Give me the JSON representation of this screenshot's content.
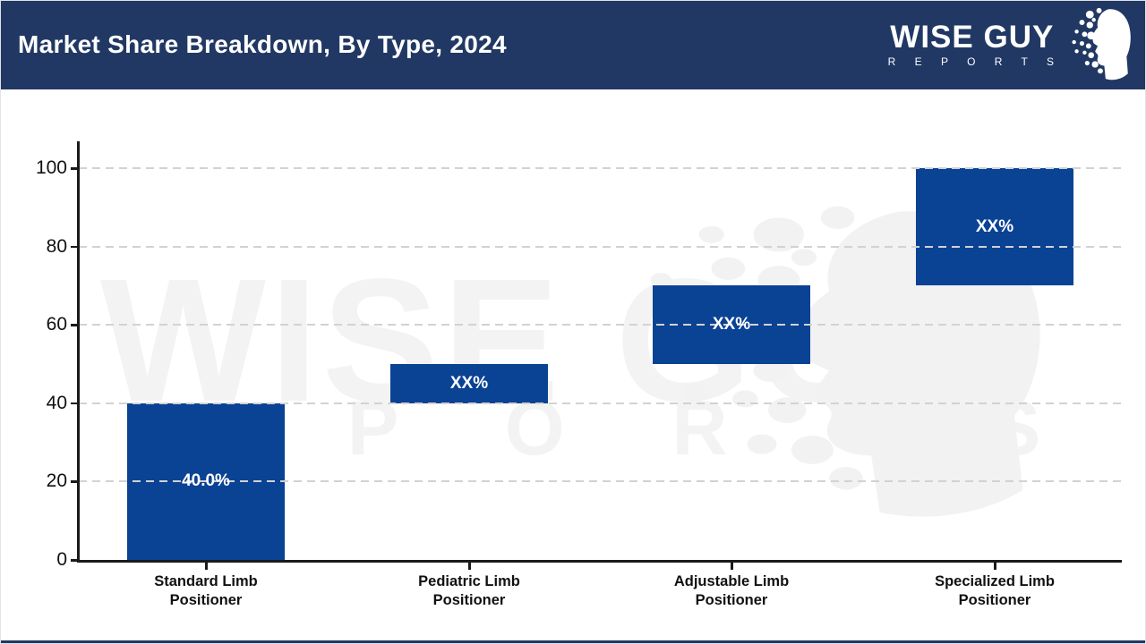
{
  "header": {
    "title": "Market Share Breakdown, By Type, 2024",
    "logo": {
      "line1": "WISE GUY",
      "line2": "R E P O R T S"
    }
  },
  "watermark": {
    "line1": "WISE GU",
    "line2": "P O R T S"
  },
  "chart_data": {
    "type": "bar",
    "subtype": "waterfall",
    "title": "Market Share Breakdown, By Type, 2024",
    "categories": [
      [
        "Standard Limb",
        "Positioner"
      ],
      [
        "Pediatric Limb",
        "Positioner"
      ],
      [
        "Adjustable Limb",
        "Positioner"
      ],
      [
        "Specialized Limb",
        "Positioner"
      ]
    ],
    "series": [
      {
        "name": "Market share (%)",
        "starts": [
          0,
          40,
          50,
          70
        ],
        "ends": [
          40,
          50,
          70,
          100
        ],
        "values": [
          40,
          10,
          20,
          30
        ],
        "labels": [
          "40.0%",
          "XX%",
          "XX%",
          "XX%"
        ]
      }
    ],
    "xlabel": "",
    "ylabel": "",
    "ylim": [
      0,
      100
    ],
    "yticks": [
      0,
      20,
      40,
      60,
      80,
      100
    ],
    "grid": "horizontal-dashed",
    "legend": "none",
    "bar_color": "#0a4294",
    "label_color": "#ffffff",
    "accent_color": "#213864"
  }
}
